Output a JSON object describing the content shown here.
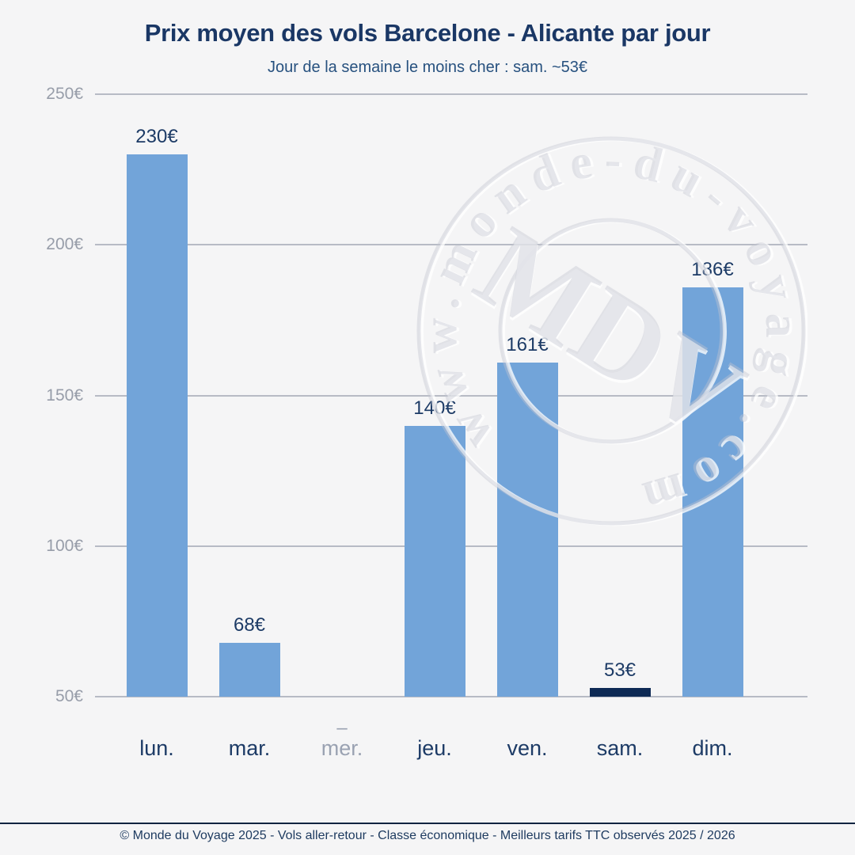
{
  "title": "Prix moyen des vols Barcelone - Alicante par jour",
  "subtitle": "Jour de la semaine le moins cher : sam. ~53€",
  "footer": {
    "text": "© Monde du Voyage 2025 - Vols aller-retour - Classe économique - Meilleurs tarifs TTC observés 2025 / 2026"
  },
  "watermark": {
    "ring_text": "www.monde-du-voyage.com",
    "center_text": "MDV"
  },
  "colors": {
    "background": "#f5f5f6",
    "bar": "#72a4d9",
    "bar_highlight": "#0e2a55",
    "title": "#1a3765",
    "subtitle": "#27517f",
    "value_label": "#1d3b66",
    "day_label": "#1d3b66",
    "muted_label": "#9aa2b2",
    "gridline": "#b7bbc5",
    "tick_label": "#979da9",
    "footer_line": "#0d2440",
    "footer_text": "#1d3a5f"
  },
  "chart_data": {
    "type": "bar",
    "title": "Prix moyen des vols Barcelone - Alicante par jour",
    "subtitle": "Jour de la semaine le moins cher : sam. ~53€",
    "categories": [
      "lun.",
      "mar.",
      "mer.",
      "jeu.",
      "ven.",
      "sam.",
      "dim."
    ],
    "values": [
      230,
      68,
      null,
      140,
      161,
      53,
      186
    ],
    "value_labels": [
      "230€",
      "68€",
      "–",
      "140€",
      "161€",
      "53€",
      "186€"
    ],
    "no_data_index": 2,
    "highlight_index": 5,
    "cheapest_day": "sam.",
    "cheapest_value": 53,
    "currency": "EUR",
    "ylim": [
      50,
      250
    ],
    "yticks": [
      {
        "value": 50,
        "label": "50€"
      },
      {
        "value": 100,
        "label": "100€"
      },
      {
        "value": 150,
        "label": "150€"
      },
      {
        "value": 200,
        "label": "200€"
      },
      {
        "value": 250,
        "label": "250€"
      }
    ],
    "grid": "horizontal",
    "legend": "none"
  }
}
